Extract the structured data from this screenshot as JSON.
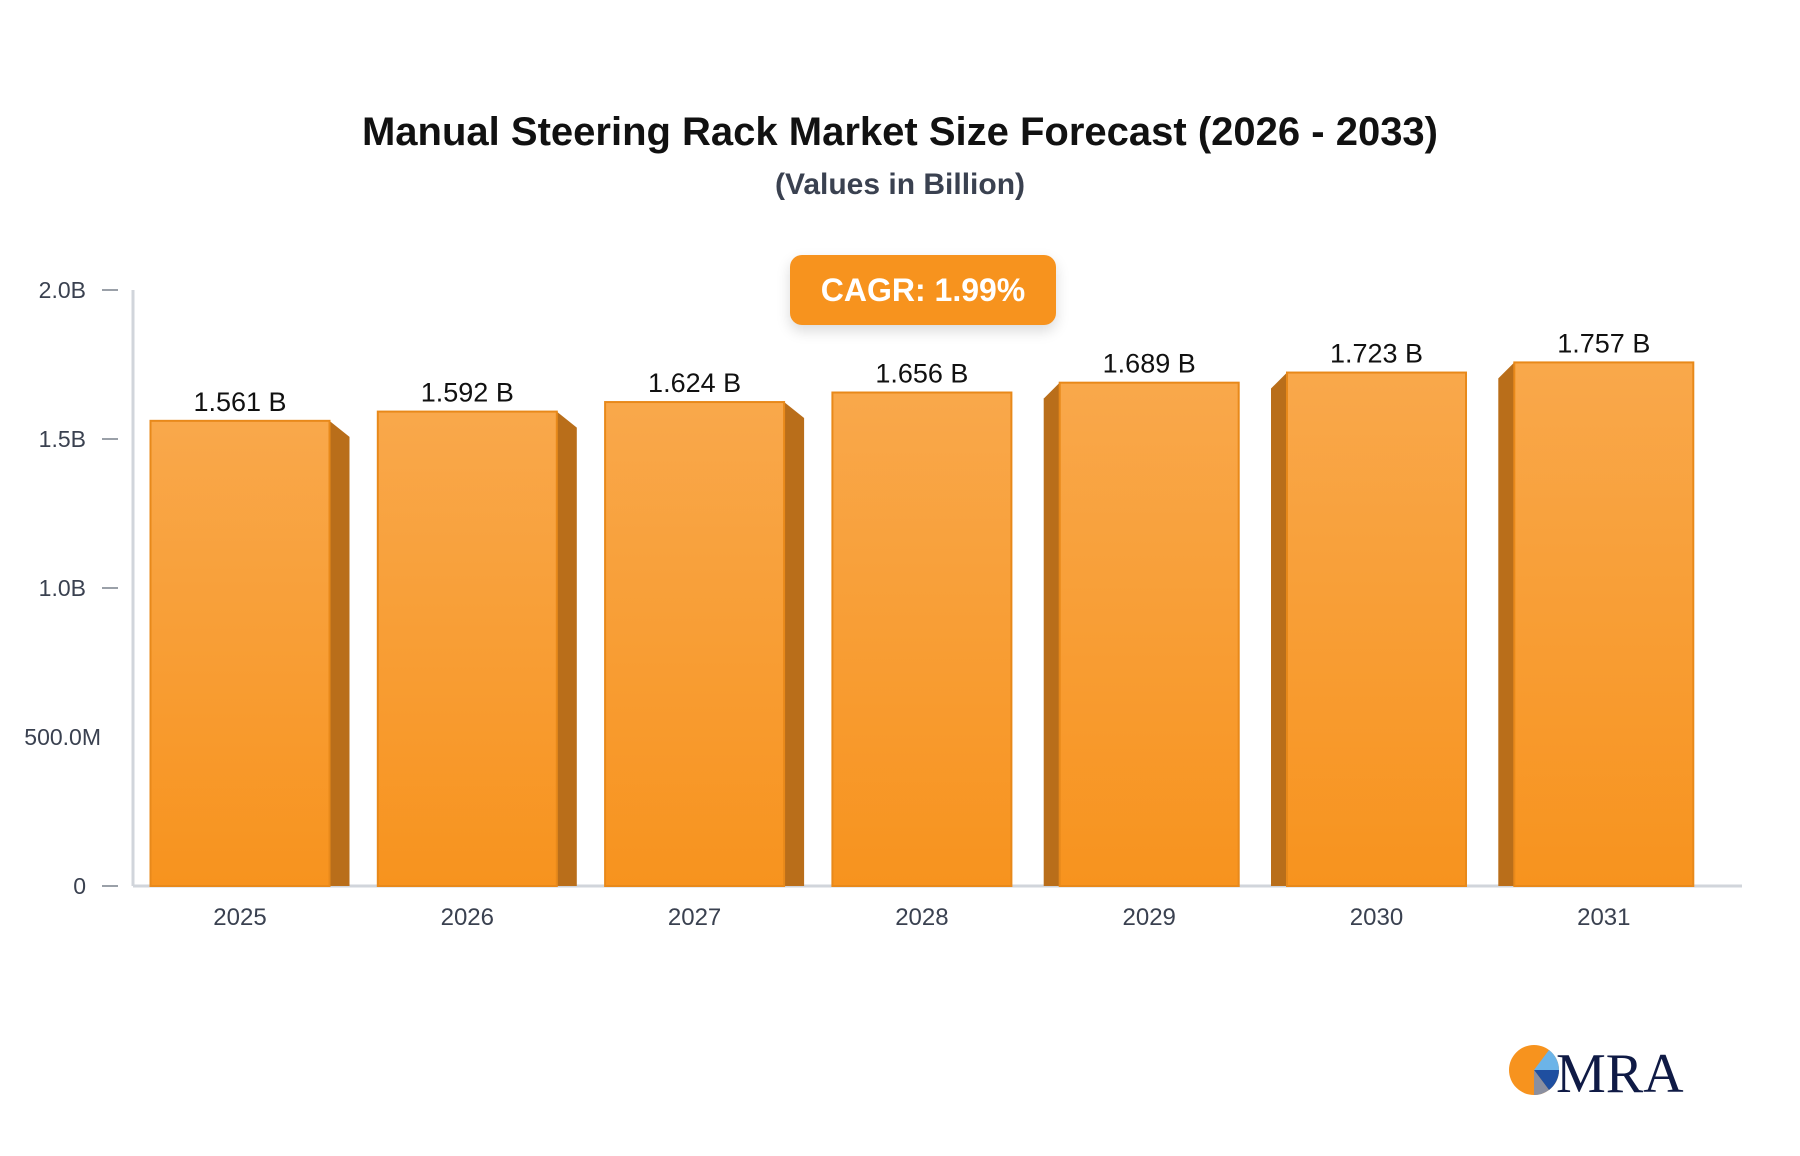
{
  "chart_data": {
    "type": "bar",
    "title": "Manual Steering Rack Market Size Forecast (2026 - 2033)",
    "subtitle": "(Values in Billion)",
    "annotation": "CAGR: 1.99%",
    "categories": [
      "2025",
      "2026",
      "2027",
      "2028",
      "2029",
      "2030",
      "2031"
    ],
    "values": [
      1.561,
      1.592,
      1.624,
      1.656,
      1.689,
      1.723,
      1.757
    ],
    "data_labels": [
      "1.561 B",
      "1.592 B",
      "1.624 B",
      "1.656 B",
      "1.689 B",
      "1.723 B",
      "1.757 B"
    ],
    "unit": "B",
    "ylim": [
      0,
      2.0
    ],
    "yticks": [
      0,
      0.5,
      1.0,
      1.5,
      2.0
    ],
    "ytick_labels": [
      "0",
      "500.0M",
      "1.0B",
      "1.5B",
      "2.0B"
    ],
    "xlabel": "",
    "ylabel": "",
    "grid": false,
    "legend": "none",
    "colors": {
      "bar_top": "#f9a84b",
      "bar_bottom": "#f7931e",
      "bar_side": "#b96e1a",
      "axis": "#d1d5db"
    }
  },
  "logo": {
    "text": "MRA",
    "colors": {
      "orange": "#f7931e",
      "navy": "#0f1a45",
      "light_blue": "#6cb4e8",
      "blue": "#1f4fa0"
    }
  }
}
